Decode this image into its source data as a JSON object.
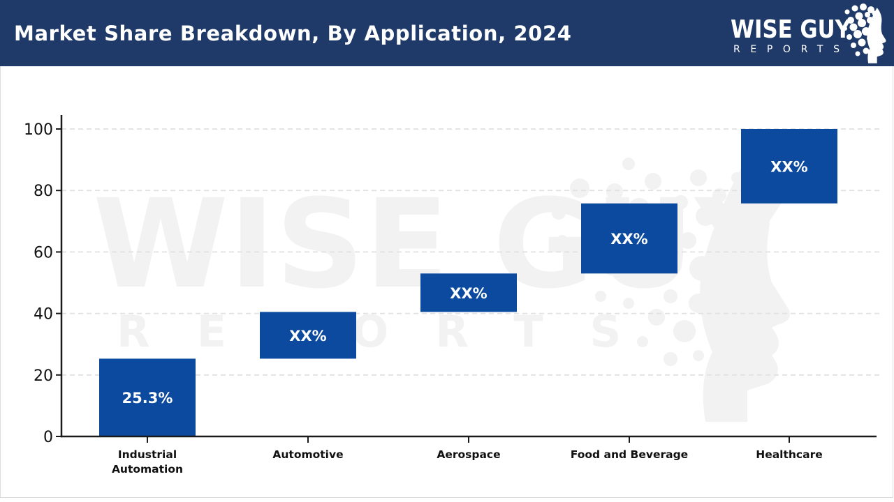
{
  "header": {
    "title": "Market Share Breakdown, By Application, 2024",
    "bg_color": "#1f3a68",
    "logo": {
      "line1": "WISE GUY",
      "line2": "REPORTS"
    }
  },
  "watermark": {
    "line1": "WISE GUY",
    "line2": "REPORTS"
  },
  "chart_data": {
    "type": "bar",
    "subtype": "waterfall",
    "title": "Market Share Breakdown, By Application, 2024",
    "categories": [
      "Industrial Automation",
      "Automotive",
      "Aerospace",
      "Food and Beverage",
      "Healthcare"
    ],
    "category_label_lines": [
      [
        "Industrial",
        "Automation"
      ],
      [
        "Automotive"
      ],
      [
        "Aerospace"
      ],
      [
        "Food and Beverage"
      ],
      [
        "Healthcare"
      ]
    ],
    "segments": [
      {
        "category": "Industrial Automation",
        "start": 0,
        "end": 25.3,
        "label": "25.3%"
      },
      {
        "category": "Automotive",
        "start": 25.3,
        "end": 40.5,
        "label": "XX%"
      },
      {
        "category": "Aerospace",
        "start": 40.5,
        "end": 53.0,
        "label": "XX%"
      },
      {
        "category": "Food and Beverage",
        "start": 53.0,
        "end": 75.8,
        "label": "XX%"
      },
      {
        "category": "Healthcare",
        "start": 75.8,
        "end": 100,
        "label": "XX%"
      }
    ],
    "y_ticks": [
      0,
      20,
      40,
      60,
      80,
      100
    ],
    "ylim": [
      0,
      105
    ],
    "xlabel": "",
    "ylabel": "",
    "grid": "horizontal-dashed",
    "legend": "none",
    "bar_color": "#0b4a9e",
    "bar_label_color": "#ffffff",
    "axis_color": "#1a1a1a",
    "tick_label_color": "#111111",
    "gridline_color": "#e1e1e1"
  }
}
